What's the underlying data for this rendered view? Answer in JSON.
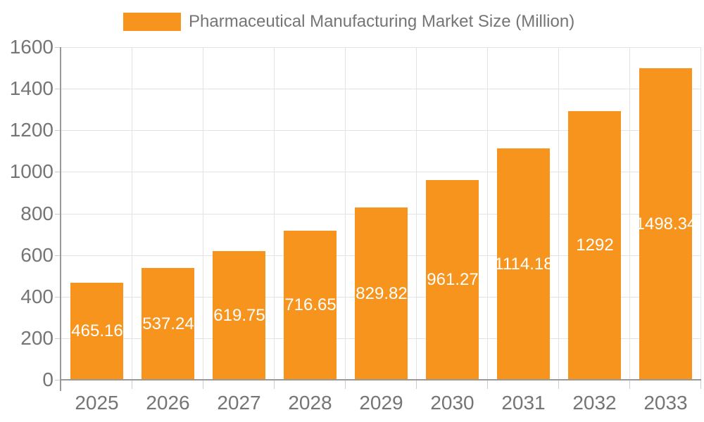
{
  "chart_data": {
    "type": "bar",
    "title": "Pharmaceutical Manufacturing Market Size (Million)",
    "categories": [
      "2025",
      "2026",
      "2027",
      "2028",
      "2029",
      "2030",
      "2031",
      "2032",
      "2033"
    ],
    "values": [
      465.16,
      537.24,
      619.75,
      716.65,
      829.82,
      961.27,
      1114.18,
      1292,
      1498.34
    ],
    "value_labels": [
      "465.16",
      "537.24",
      "619.75",
      "716.65",
      "829.82",
      "961.27",
      "1114.18",
      "1292",
      "1498.34"
    ],
    "xlabel": "",
    "ylabel": "",
    "ylim": [
      0,
      1600
    ],
    "yticks": [
      0,
      200,
      400,
      600,
      800,
      1000,
      1200,
      1400,
      1600
    ],
    "ytick_labels": [
      "0",
      "200",
      "400",
      "600",
      "800",
      "1000",
      "1200",
      "1400",
      "1600"
    ],
    "grid": true,
    "legend_position": "top-center",
    "value_label_position": "inside-middle",
    "colors": {
      "bar": "#F7941E",
      "bar_value_text": "#FFFFFF",
      "axis_text": "#757575",
      "legend_text": "#757575",
      "gridline": "#E3E3E3",
      "axis_line": "#999999",
      "tick": "#CCCCCC",
      "background": "#FFFFFF"
    }
  }
}
